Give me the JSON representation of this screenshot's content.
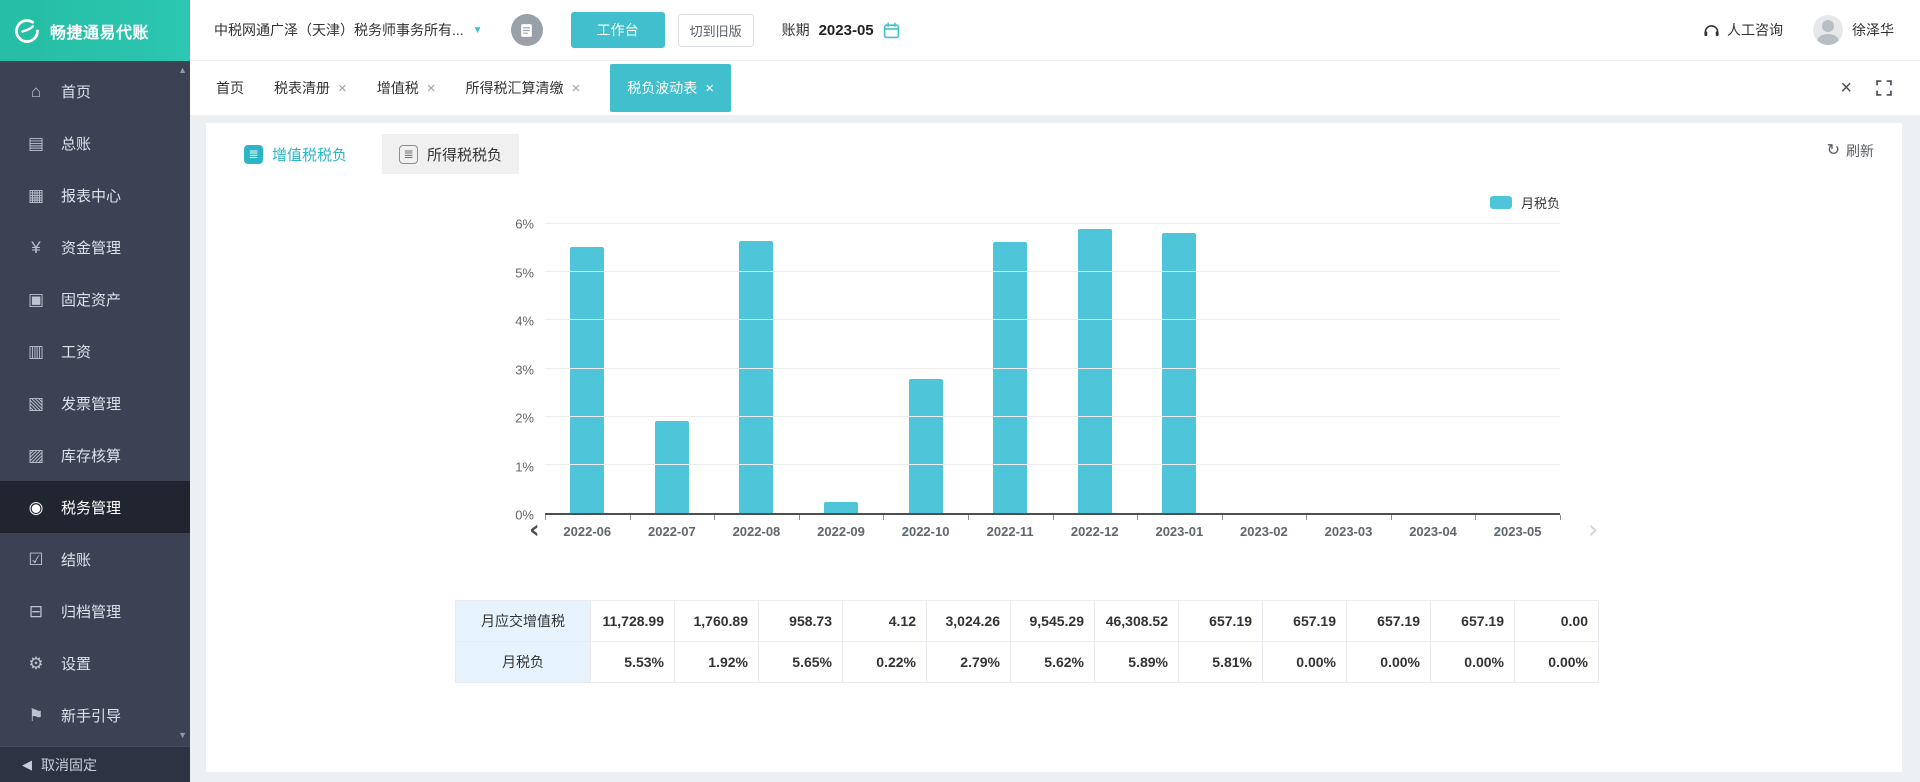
{
  "header": {
    "logo_text": "畅捷通易代账",
    "company_name": "中税网通广泽（天津）税务师事务所有...",
    "workbench_button": "工作台",
    "switch_old_button": "切到旧版",
    "period_label": "账期",
    "period_value": "2023-05",
    "support_label": "人工咨询",
    "user_name": "徐泽华"
  },
  "sidebar": {
    "items": [
      {
        "id": "home",
        "label": "首页",
        "icon": "home-icon"
      },
      {
        "id": "general-ledger",
        "label": "总账",
        "icon": "ledger-icon"
      },
      {
        "id": "report-center",
        "label": "报表中心",
        "icon": "report-icon"
      },
      {
        "id": "funds",
        "label": "资金管理",
        "icon": "funds-icon"
      },
      {
        "id": "fixed-assets",
        "label": "固定资产",
        "icon": "fixed-assets-icon"
      },
      {
        "id": "payroll",
        "label": "工资",
        "icon": "payroll-icon"
      },
      {
        "id": "invoice",
        "label": "发票管理",
        "icon": "invoice-icon"
      },
      {
        "id": "inventory",
        "label": "库存核算",
        "icon": "inventory-icon"
      },
      {
        "id": "tax",
        "label": "税务管理",
        "icon": "tax-icon",
        "active": true
      },
      {
        "id": "closing",
        "label": "结账",
        "icon": "closing-icon"
      },
      {
        "id": "archive",
        "label": "归档管理",
        "icon": "archive-icon"
      },
      {
        "id": "settings",
        "label": "设置",
        "icon": "settings-icon"
      },
      {
        "id": "guide",
        "label": "新手引导",
        "icon": "guide-icon"
      }
    ],
    "unpin_label": "取消固定"
  },
  "tabbar": {
    "tabs": [
      {
        "label": "首页",
        "closable": false
      },
      {
        "label": "税表清册",
        "closable": true
      },
      {
        "label": "增值税",
        "closable": true
      },
      {
        "label": "所得税汇算清缴",
        "closable": true
      },
      {
        "label": "税负波动表",
        "closable": true,
        "active": true
      }
    ]
  },
  "panel": {
    "tab_vat": "增值税税负",
    "tab_income_tax": "所得税税负",
    "refresh_label": "刷新"
  },
  "chart_data": {
    "type": "bar",
    "title": "",
    "legend": [
      "月税负"
    ],
    "legend_position": "top-right",
    "categories": [
      "2022-06",
      "2022-07",
      "2022-08",
      "2022-09",
      "2022-10",
      "2022-11",
      "2022-12",
      "2023-01",
      "2023-02",
      "2023-03",
      "2023-04",
      "2023-05"
    ],
    "series": [
      {
        "name": "月税负",
        "values": [
          5.53,
          1.92,
          5.65,
          0.22,
          2.79,
          5.62,
          5.89,
          5.81,
          0,
          0,
          0,
          0
        ]
      }
    ],
    "y_ticks": [
      "0%",
      "1%",
      "2%",
      "3%",
      "4%",
      "5%",
      "6%"
    ],
    "ylim": [
      0,
      6
    ],
    "y_unit": "%",
    "grid": true,
    "bar_color": "#4ec5d8"
  },
  "table": {
    "rows": [
      {
        "header": "月应交增值税",
        "values": [
          "11,728.99",
          "1,760.89",
          "958.73",
          "4.12",
          "3,024.26",
          "9,545.29",
          "46,308.52",
          "657.19",
          "657.19",
          "657.19",
          "657.19",
          "0.00"
        ]
      },
      {
        "header": "月税负",
        "values": [
          "5.53%",
          "1.92%",
          "5.65%",
          "0.22%",
          "2.79%",
          "5.62%",
          "5.89%",
          "5.81%",
          "0.00%",
          "0.00%",
          "0.00%",
          "0.00%"
        ]
      }
    ]
  },
  "colors": {
    "accent_teal": "#41bfcd",
    "logo_green": "#29c0a8",
    "sidebar_bg": "#3b4254",
    "sidebar_active_bg": "#21252f",
    "bar_color": "#4ec5d8",
    "table_header_bg": "#e6f3fc",
    "content_bg": "#edf0f3"
  }
}
